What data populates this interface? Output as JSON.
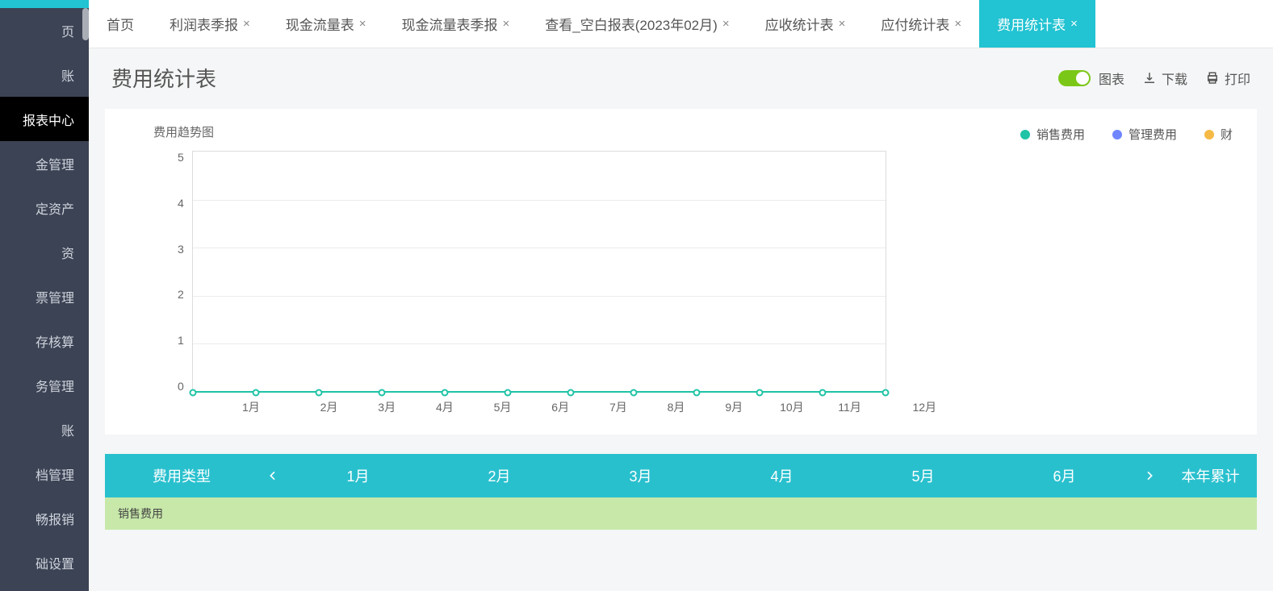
{
  "sidebar": {
    "items": [
      {
        "label": "页"
      },
      {
        "label": "账"
      },
      {
        "label": "报表中心",
        "active": true
      },
      {
        "label": "金管理"
      },
      {
        "label": "定资产"
      },
      {
        "label": "资"
      },
      {
        "label": "票管理"
      },
      {
        "label": "存核算"
      },
      {
        "label": "务管理"
      },
      {
        "label": "账"
      },
      {
        "label": "档管理"
      },
      {
        "label": "畅报销"
      },
      {
        "label": "础设置"
      }
    ]
  },
  "tabs": [
    {
      "label": "首页",
      "closable": false
    },
    {
      "label": "利润表季报",
      "closable": true
    },
    {
      "label": "现金流量表",
      "closable": true
    },
    {
      "label": "现金流量表季报",
      "closable": true
    },
    {
      "label": "查看_空白报表(2023年02月)",
      "closable": true
    },
    {
      "label": "应收统计表",
      "closable": true
    },
    {
      "label": "应付统计表",
      "closable": true
    },
    {
      "label": "费用统计表",
      "closable": true,
      "active": true
    }
  ],
  "page": {
    "title": "费用统计表",
    "toggle_label": "图表",
    "download_label": "下载",
    "print_label": "打印"
  },
  "chart": {
    "title": "费用趋势图",
    "type": "line",
    "x_labels": [
      "1月",
      "2月",
      "3月",
      "4月",
      "5月",
      "6月",
      "7月",
      "8月",
      "9月",
      "10月",
      "11月",
      "12月"
    ],
    "y_ticks": [
      5,
      4,
      3,
      2,
      1,
      0
    ],
    "ylim": [
      0,
      5
    ],
    "grid_color": "#ececec",
    "border_color": "#dcdcdc",
    "series": [
      {
        "name": "销售费用",
        "color": "#1fc3a6",
        "values": [
          0,
          0,
          0,
          0,
          0,
          0,
          0,
          0,
          0,
          0,
          0,
          0
        ]
      },
      {
        "name": "管理费用",
        "color": "#6f86ff",
        "values": [
          0,
          0,
          0,
          0,
          0,
          0,
          0,
          0,
          0,
          0,
          0,
          0
        ]
      },
      {
        "name": "财",
        "color": "#f5b945",
        "values": [
          0,
          0,
          0,
          0,
          0,
          0,
          0,
          0,
          0,
          0,
          0,
          0
        ]
      }
    ]
  },
  "table": {
    "header_bg": "#29c0ce",
    "row_hl_bg": "#c7e8a9",
    "type_col": "费用类型",
    "total_col": "本年累计",
    "months": [
      "1月",
      "2月",
      "3月",
      "4月",
      "5月",
      "6月"
    ],
    "rows": [
      {
        "type": "销售费用",
        "highlight": true
      }
    ]
  }
}
